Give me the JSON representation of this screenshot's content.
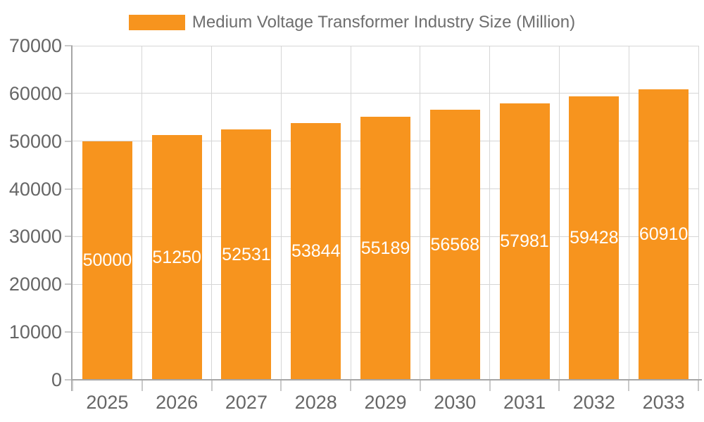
{
  "legend": {
    "label": "Medium Voltage Transformer Industry Size (Million)"
  },
  "chart_data": {
    "type": "bar",
    "title": "Medium Voltage Transformer Industry Size (Million)",
    "categories": [
      "2025",
      "2026",
      "2027",
      "2028",
      "2029",
      "2030",
      "2031",
      "2032",
      "2033"
    ],
    "values": [
      50000,
      51250,
      52531,
      53844,
      55189,
      56568,
      57981,
      59428,
      60910
    ],
    "bar_labels": [
      "50000",
      "51250",
      "52531",
      "53844",
      "55189",
      "56568",
      "57981",
      "59428",
      "60910"
    ],
    "xlabel": "",
    "ylabel": "",
    "ylim": [
      0,
      70000
    ],
    "ytick_interval": 10000,
    "ytick_labels": [
      "0",
      "10000",
      "20000",
      "30000",
      "40000",
      "50000",
      "60000",
      "70000"
    ],
    "grid": true,
    "legend_position": "top-center",
    "colors": {
      "bar": "#F7941E",
      "bar_label": "#FFFFFF",
      "axis_text": "#666666",
      "legend_text": "#6E6E6E",
      "gridline": "#D6D6D6",
      "axis_line": "#A6A6A6",
      "tick": "#C9C9C9",
      "background": "#FFFFFF"
    }
  }
}
